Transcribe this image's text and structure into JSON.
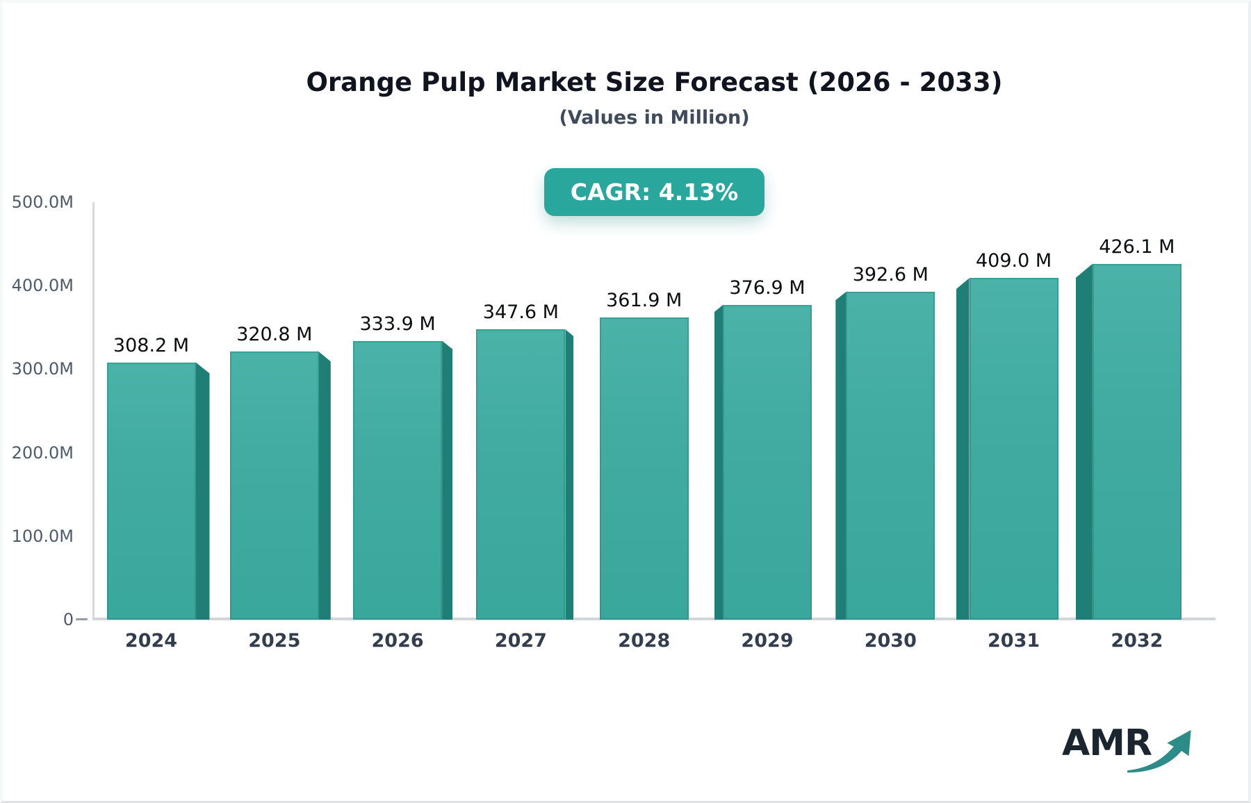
{
  "header": {
    "title": "Orange Pulp Market Size Forecast (2026 - 2033)",
    "subtitle": "(Values in Million)",
    "cagr_badge": "CAGR: 4.13%"
  },
  "chart_data": {
    "type": "bar",
    "title": "Orange Pulp Market Size Forecast (2026 - 2033)",
    "subtitle": "(Values in Million)",
    "cagr_percent": "4.13%",
    "categories": [
      "2024",
      "2025",
      "2026",
      "2027",
      "2028",
      "2029",
      "2030",
      "2031",
      "2032"
    ],
    "values": [
      308.2,
      320.8,
      333.9,
      347.6,
      361.9,
      376.9,
      392.6,
      409.0,
      426.1
    ],
    "bar_labels": [
      "308.2 M",
      "320.8 M",
      "333.9 M",
      "347.6 M",
      "361.9 M",
      "376.9 M",
      "392.6 M",
      "409.0 M",
      "426.1 M"
    ],
    "unit": "Million",
    "y_axis": {
      "tick_labels": [
        "500.0M",
        "400.0M",
        "300.0M",
        "200.0M",
        "100.0M",
        "0"
      ],
      "tick_values": [
        500,
        400,
        300,
        200,
        100,
        0
      ],
      "range": [
        0,
        500
      ]
    },
    "grid": "off",
    "legend": "none",
    "colors": {
      "bar_fill_top": "#4bb2a8",
      "bar_fill_bottom": "#3aa79c",
      "bar_side_face": "#1f7e76",
      "accent_badge": "#2aa79d",
      "axis_line": "#d2d6db",
      "y_label_text": "#4d5b6a",
      "x_label_text": "#323d4e",
      "value_label_text": "#0b0d11",
      "title_text": "#10141f"
    }
  },
  "logo": {
    "text": "AMR",
    "arrow_icon": "growth-arrow-icon"
  }
}
